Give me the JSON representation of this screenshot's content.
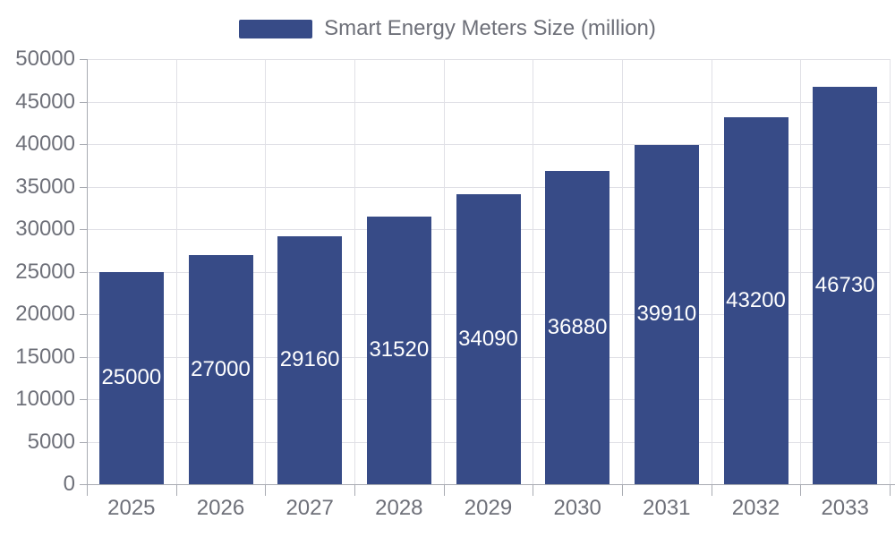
{
  "chart_data": {
    "type": "bar",
    "title": "Smart Energy Meters Size (million)",
    "categories": [
      "2025",
      "2026",
      "2027",
      "2028",
      "2029",
      "2030",
      "2031",
      "2032",
      "2033"
    ],
    "values": [
      25000,
      27000,
      29160,
      31520,
      34090,
      36880,
      39910,
      43200,
      46730
    ],
    "xlabel": "",
    "ylabel": "",
    "ylim": [
      0,
      50000
    ],
    "ytick_step": 5000,
    "y_tick_labels": [
      "0",
      "5000",
      "10000",
      "15000",
      "20000",
      "25000",
      "30000",
      "35000",
      "40000",
      "45000",
      "50000"
    ],
    "grid": true,
    "legend_position": "top",
    "value_labels_shown_inside_bars": true,
    "colors": {
      "bar": "#374b87",
      "value_label": "#ffffff",
      "axis_text": "#6e7079",
      "grid_line": "#e0e0e6",
      "axis_line": "#a8abb2"
    }
  }
}
